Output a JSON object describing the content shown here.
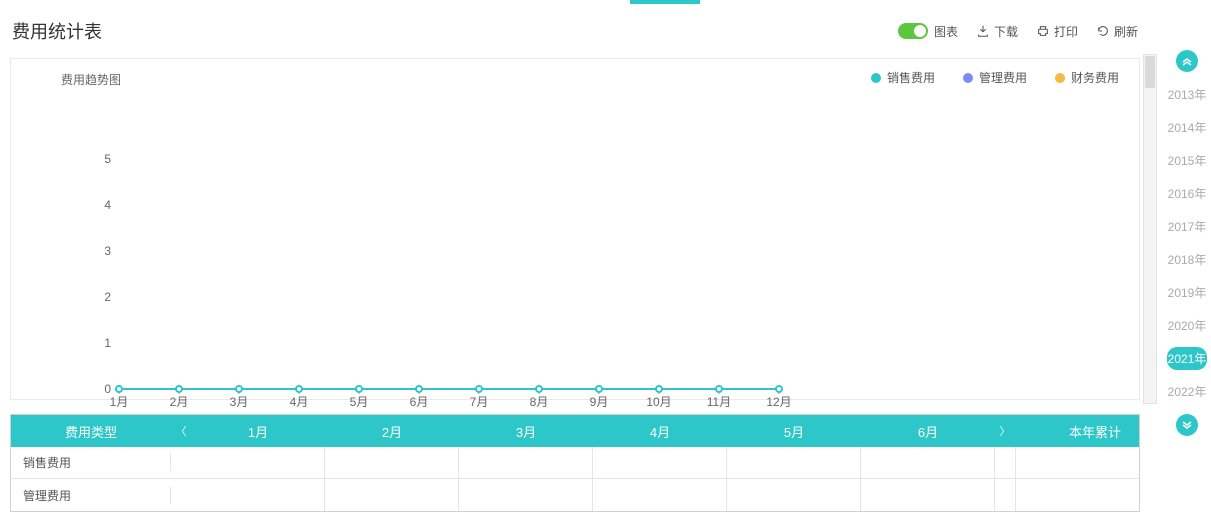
{
  "accent_color": "#2ec7c9",
  "header": {
    "title": "费用统计表",
    "toggle_on": true,
    "toggle_color": "#5ac73f",
    "chart_label": "图表",
    "download_label": "下载",
    "print_label": "打印",
    "refresh_label": "刷新"
  },
  "chart": {
    "title": "费用趋势图",
    "type": "line",
    "legend": [
      {
        "label": "销售费用",
        "color": "#2ec7c9"
      },
      {
        "label": "管理费用",
        "color": "#7b8df6"
      },
      {
        "label": "财务费用",
        "color": "#f5b945"
      }
    ],
    "x_categories": [
      "1月",
      "2月",
      "3月",
      "4月",
      "5月",
      "6月",
      "7月",
      "8月",
      "9月",
      "10月",
      "11月",
      "12月"
    ],
    "y_ticks": [
      0,
      1,
      2,
      3,
      4,
      5
    ],
    "ylim": [
      0,
      5
    ],
    "series_sales": {
      "color": "#2ec7c9",
      "values": [
        0,
        0,
        0,
        0,
        0,
        0,
        0,
        0,
        0,
        0,
        0,
        0
      ]
    },
    "axis_color": "#cccccc",
    "label_color": "#666666",
    "label_fontsize": 12,
    "marker_radius": 4,
    "line_width": 2,
    "background_color": "#ffffff"
  },
  "table": {
    "header_bg": "#2ec7c9",
    "header_color": "#ffffff",
    "type_header": "费用类型",
    "months_visible": [
      "1月",
      "2月",
      "3月",
      "4月",
      "5月",
      "6月"
    ],
    "total_header": "本年累计",
    "rows": [
      {
        "label": "销售费用"
      },
      {
        "label": "管理费用"
      }
    ]
  },
  "years": {
    "items": [
      "2013年",
      "2014年",
      "2015年",
      "2016年",
      "2017年",
      "2018年",
      "2019年",
      "2020年",
      "2021年",
      "2022年"
    ],
    "active": "2021年",
    "active_bg": "#2ec7c9"
  }
}
